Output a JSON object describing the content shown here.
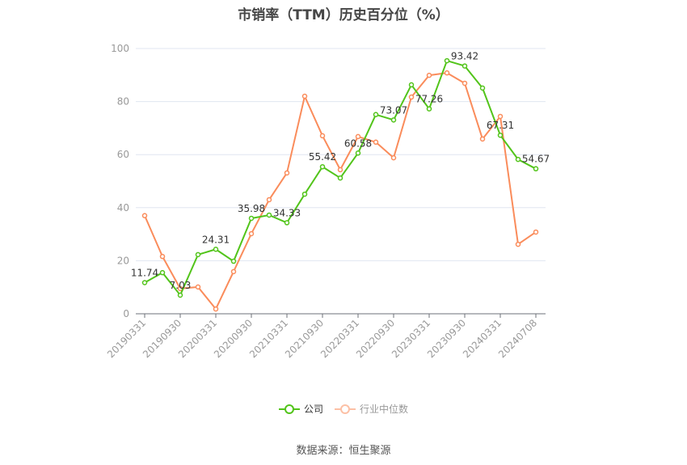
{
  "title": "市销率（TTM）历史百分位（%）",
  "legend": {
    "company_label": "公司",
    "industry_label": "行业中位数"
  },
  "source": "数据来源：恒生聚源",
  "colors": {
    "company": "#52c41a",
    "industry": "#fa8c5b",
    "grid": "#e0e6f1",
    "axis": "#6e7079",
    "tick_label": "#999999"
  },
  "chart_data": {
    "type": "line",
    "title": "市销率（TTM）历史百分位（%）",
    "xlabel": "",
    "ylabel": "",
    "ylim": [
      0,
      100
    ],
    "yticks": [
      0,
      20,
      40,
      60,
      80,
      100
    ],
    "grid": true,
    "legend_position": "bottom",
    "x_tick_labels": [
      "20190331",
      "20190930",
      "20200331",
      "20200930",
      "20210331",
      "20210930",
      "20220331",
      "20220930",
      "20230331",
      "20230930",
      "20240331",
      "20240708"
    ],
    "x_tick_indices": [
      0,
      2,
      4,
      6,
      8,
      10,
      12,
      14,
      16,
      18,
      20,
      22
    ],
    "series": [
      {
        "name": "公司",
        "values": [
          11.74,
          15.5,
          7.03,
          22.3,
          24.31,
          19.8,
          35.98,
          37.2,
          34.33,
          45.1,
          55.42,
          51.2,
          60.58,
          75.1,
          73.07,
          86.3,
          77.26,
          95.4,
          93.42,
          85.1,
          67.31,
          58.2,
          54.67
        ],
        "labeled_indices": [
          0,
          2,
          4,
          6,
          8,
          10,
          12,
          14,
          16,
          18,
          20,
          22
        ]
      },
      {
        "name": "行业中位数",
        "values": [
          37.0,
          21.6,
          9.5,
          10.1,
          1.8,
          15.9,
          30.2,
          43.0,
          53.1,
          82.0,
          67.1,
          54.3,
          66.8,
          64.7,
          58.8,
          81.7,
          89.9,
          90.8,
          86.9,
          65.9,
          74.4,
          26.2,
          30.8
        ]
      }
    ]
  }
}
